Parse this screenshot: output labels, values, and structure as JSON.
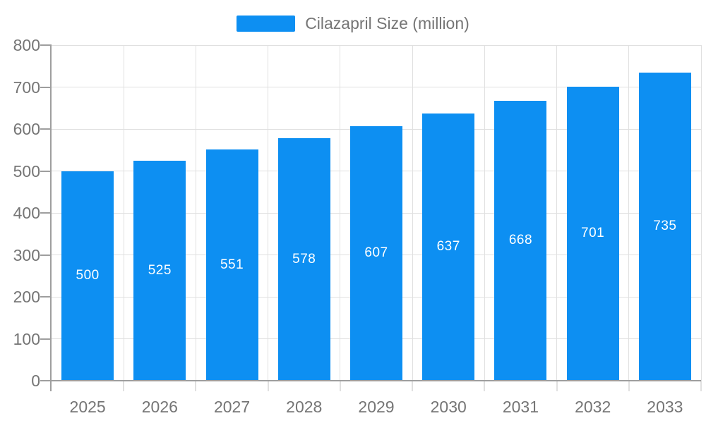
{
  "legend": {
    "label": "Cilazapril Size (million)"
  },
  "chart_data": {
    "type": "bar",
    "title": "",
    "series_name": "Cilazapril Size (million)",
    "categories": [
      "2025",
      "2026",
      "2027",
      "2028",
      "2029",
      "2030",
      "2031",
      "2032",
      "2033"
    ],
    "values": [
      500,
      525,
      551,
      578,
      607,
      637,
      668,
      701,
      735
    ],
    "value_labels": [
      "500",
      "525",
      "551",
      "578",
      "607",
      "637",
      "668",
      "701",
      "735"
    ],
    "xlabel": "",
    "ylabel": "",
    "ylim": [
      0,
      800
    ],
    "yticks": [
      0,
      100,
      200,
      300,
      400,
      500,
      600,
      700,
      800
    ],
    "grid": true,
    "legend_position": "top-center",
    "colors": {
      "bar": "#0d8ff2",
      "value_label": "#ffffff",
      "axis_line": "#9e9e9e",
      "grid_line": "#e0e0e0",
      "tick_line": "#e0e0e0",
      "axis_label": "#757575",
      "background": "#ffffff"
    }
  }
}
